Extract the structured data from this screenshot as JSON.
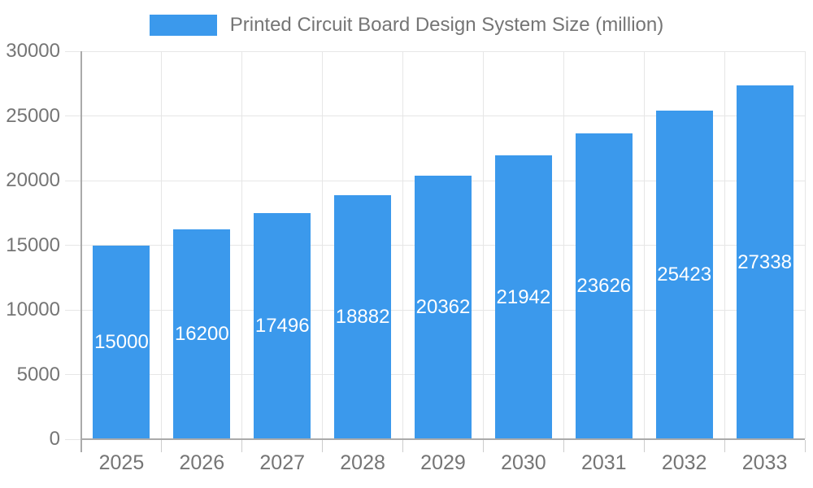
{
  "chart_data": {
    "type": "bar",
    "title": "Printed Circuit Board Design System Size (million)",
    "categories": [
      "2025",
      "2026",
      "2027",
      "2028",
      "2029",
      "2030",
      "2031",
      "2032",
      "2033"
    ],
    "series": [
      {
        "name": "Printed Circuit Board Design System Size (million)",
        "values": [
          15000,
          16200,
          17496,
          18882,
          20362,
          21942,
          23626,
          25423,
          27338
        ]
      }
    ],
    "bar_value_labels": [
      "15000",
      "16200",
      "17496",
      "18882",
      "20362",
      "21942",
      "23626",
      "25423",
      "27338"
    ],
    "xlabel": "",
    "ylabel": "",
    "ylim": [
      0,
      30000
    ],
    "y_ticks": [
      0,
      5000,
      10000,
      15000,
      20000,
      25000,
      30000
    ],
    "y_tick_labels": [
      "0",
      "5000",
      "10000",
      "15000",
      "20000",
      "25000",
      "30000"
    ],
    "grid": "horizontal and vertical, light gray",
    "legend_position": "top-center",
    "colors": {
      "bar": "#3B99EC",
      "bar_label": "#ffffff",
      "axis_text": "#757575",
      "axis_line": "#aaaaaa",
      "gridline": "#e6e6e6",
      "background": "#ffffff"
    }
  }
}
